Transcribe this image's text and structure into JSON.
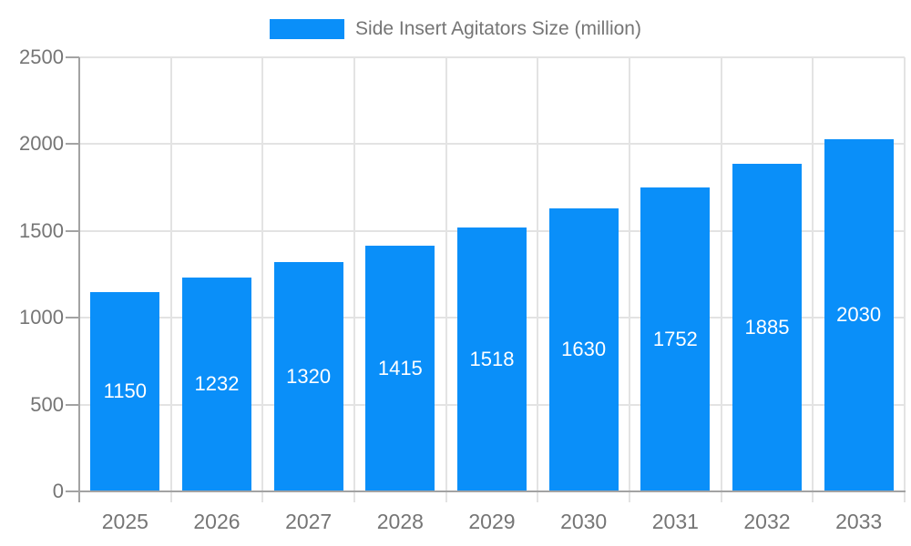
{
  "chart_data": {
    "type": "bar",
    "title": "Side Insert Agitators Size (million)",
    "categories": [
      "2025",
      "2026",
      "2027",
      "2028",
      "2029",
      "2030",
      "2031",
      "2032",
      "2033"
    ],
    "values": [
      1150,
      1232,
      1320,
      1415,
      1518,
      1630,
      1752,
      1885,
      2030
    ],
    "bar_value_labels": [
      "1150",
      "1232",
      "1320",
      "1415",
      "1518",
      "1630",
      "1752",
      "1885",
      "2030"
    ],
    "ytick_labels": [
      "0",
      "500",
      "1000",
      "1500",
      "2000",
      "2500"
    ],
    "yticks": [
      0,
      500,
      1000,
      1500,
      2000,
      2500
    ],
    "ylim": [
      0,
      2500
    ],
    "grid": true,
    "legend_position": "top",
    "colors": {
      "bar": "#0a8ff9",
      "bar_label_text": "#ffffff",
      "grid_line": "#e3e3e3",
      "axis_line": "#a3a3a3",
      "tick_text": "#757575",
      "legend_text": "#757575",
      "background": "#ffffff"
    }
  }
}
